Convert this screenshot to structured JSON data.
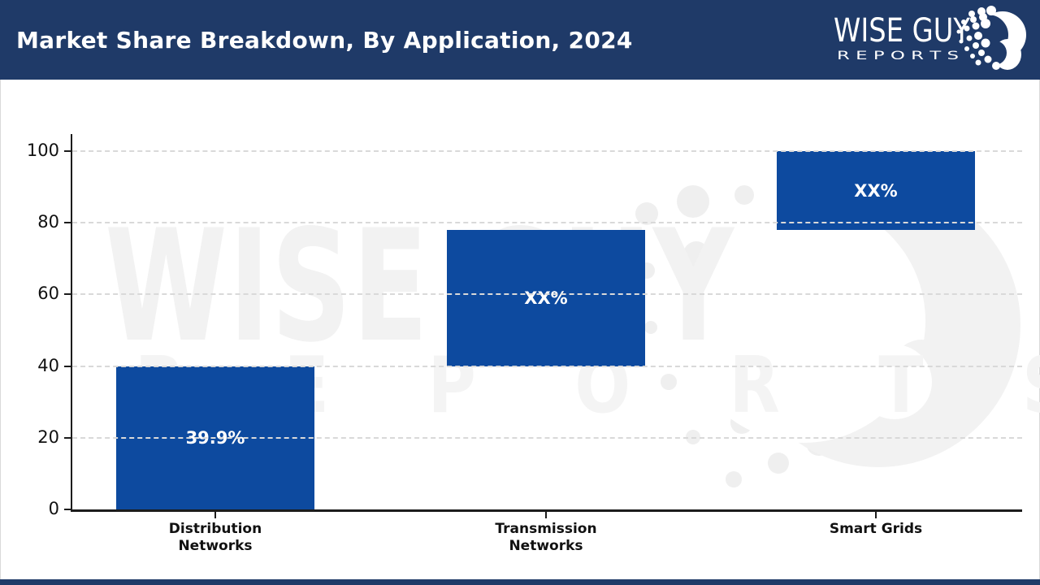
{
  "header": {
    "title": "Market Share Breakdown, By Application, 2024",
    "bg_color": "#1f3a68",
    "logo": {
      "line1": "WISE GUY",
      "line2": "R E P O R T S"
    }
  },
  "watermark": {
    "line1": "WISE GUY",
    "line2": "R E P O R T S"
  },
  "chart_data": {
    "type": "bar",
    "subtype": "waterfall",
    "title": "Market Share Breakdown, By Application, 2024",
    "categories": [
      [
        "Distribution",
        "Networks"
      ],
      [
        "Transmission",
        "Networks"
      ],
      [
        "Smart Grids"
      ]
    ],
    "series": [
      {
        "name": "Market share (%)",
        "segments": [
          {
            "category": "Distribution Networks",
            "start": 0,
            "end": 39.9,
            "label": "39.9%"
          },
          {
            "category": "Transmission Networks",
            "start": 40,
            "end": 78,
            "label": "XX%"
          },
          {
            "category": "Smart Grids",
            "start": 78,
            "end": 100,
            "label": "XX%"
          }
        ]
      }
    ],
    "xlabel": "",
    "ylabel": "",
    "yticks": [
      0,
      20,
      40,
      60,
      80,
      100
    ],
    "ylim": [
      0,
      104.8
    ],
    "grid": true,
    "grid_style": "dashed",
    "legend_position": "none",
    "bar_color": "#0d4a9f",
    "bar_label_color": "#ffffff",
    "axis_color": "#1c1c1c",
    "grid_color": "#d9d9d9",
    "tick_label_color": "#111111"
  },
  "footer": {
    "bg_color": "#1f3a68"
  }
}
